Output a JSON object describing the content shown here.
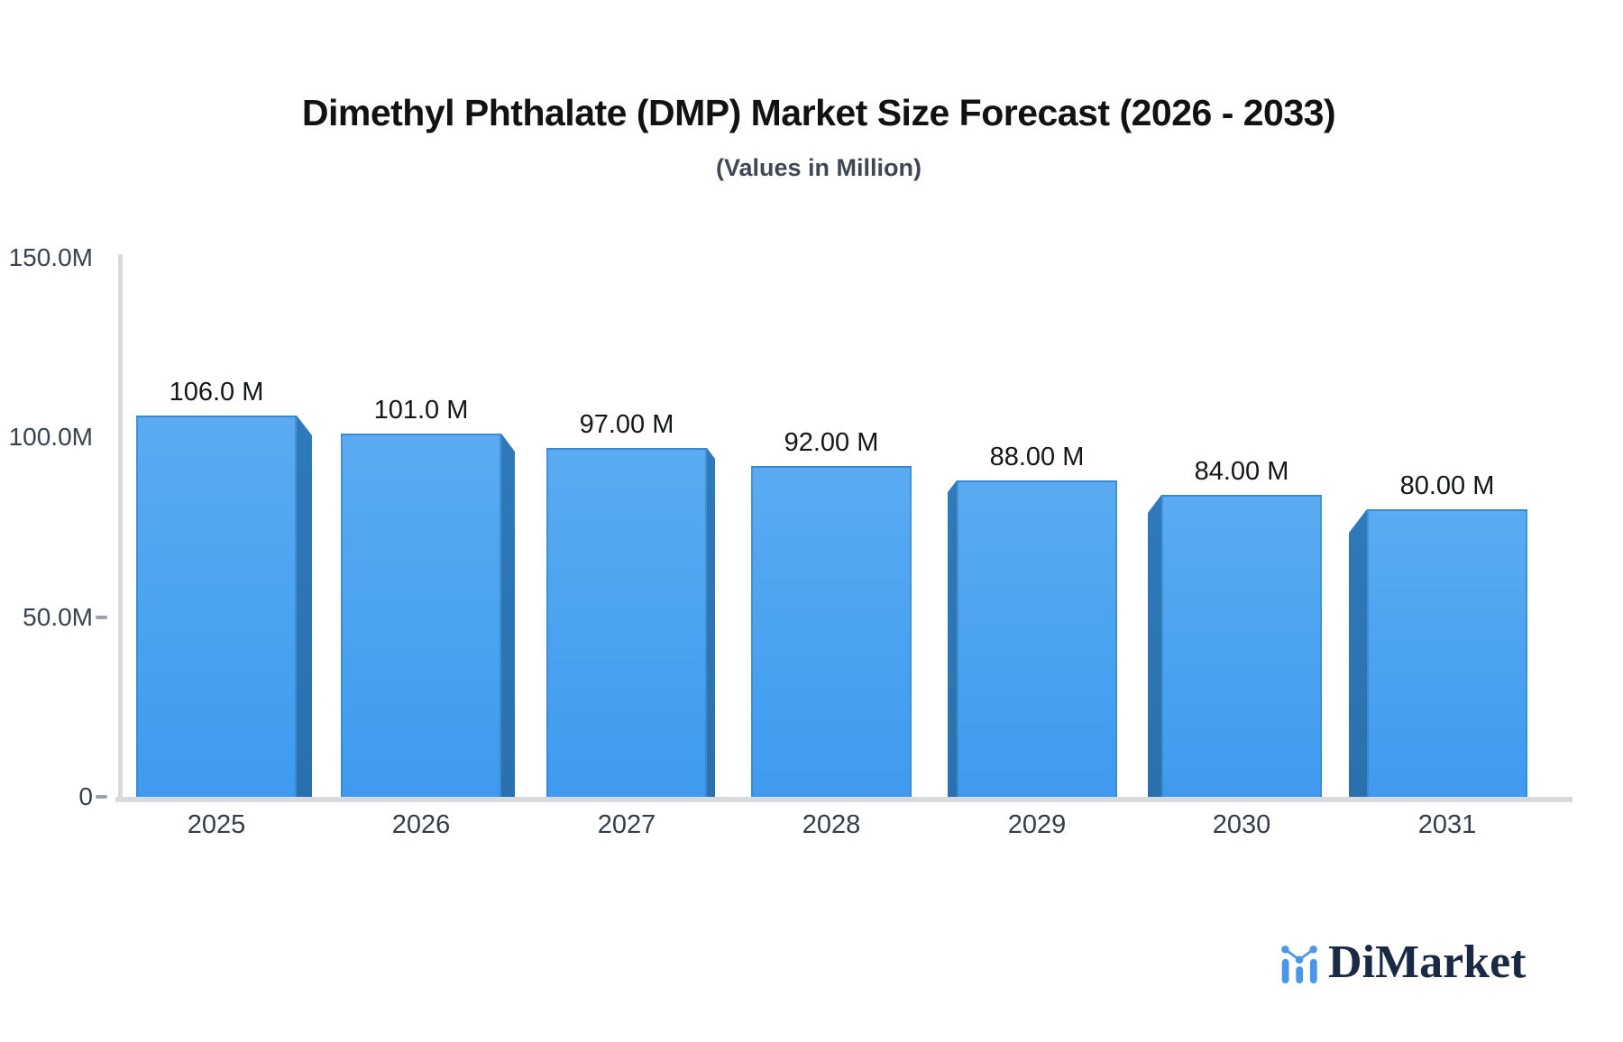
{
  "title": "Dimethyl Phthalate (DMP) Market Size Forecast (2026 - 2033)",
  "subtitle": "(Values in Million)",
  "watermark": {
    "brand": "DiMarket",
    "icon": "bar-line-chart-icon",
    "icon_color": "#4a96ea",
    "text_color": "#1b2a44"
  },
  "chart_data": {
    "type": "bar",
    "categories": [
      "2025",
      "2026",
      "2027",
      "2028",
      "2029",
      "2030",
      "2031"
    ],
    "values": [
      106,
      101,
      97,
      92,
      88,
      84,
      80
    ],
    "value_labels": [
      "106.0 M",
      "101.0 M",
      "97.00 M",
      "92.00 M",
      "88.00 M",
      "84.00 M",
      "80.00 M"
    ],
    "title": "Dimethyl Phthalate (DMP) Market Size Forecast (2026 - 2033)",
    "subtitle": "(Values in Million)",
    "xlabel": "",
    "ylabel": "",
    "ylim": [
      0,
      150
    ],
    "y_ticks": [
      {
        "label": "150.0M",
        "value": 150,
        "dash": false
      },
      {
        "label": "100.0M",
        "value": 100,
        "dash": false
      },
      {
        "label": "50.0M",
        "value": 50,
        "dash": true
      },
      {
        "label": "0",
        "value": 0,
        "dash": true
      }
    ],
    "grid": false,
    "legend": false,
    "style": "3d-perspective-bars",
    "bar_color_top": "#5aabf1",
    "bar_color_bottom": "#3f9aef",
    "bar_side_color": "#2d75b5",
    "axis_color": "#d9dade",
    "label_color": "#14171a"
  }
}
